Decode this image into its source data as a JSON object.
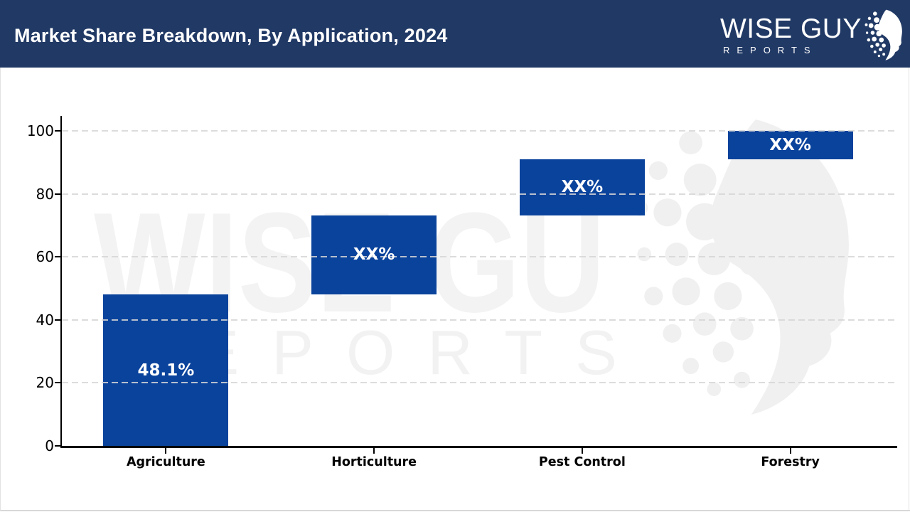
{
  "header": {
    "title": "Market Share Breakdown, By Application, 2024",
    "logo": {
      "line1": "WISE GUY",
      "line2": "REPORTS"
    }
  },
  "watermark": {
    "line1": "WISE GU",
    "line2": "REPORTS"
  },
  "colors": {
    "header_bg": "#213965",
    "bar": "#0a439c",
    "grid": "#d6d6d6",
    "axis": "#000000",
    "bar_label": "#ffffff",
    "watermark": "#f2f2f2",
    "logo_face": "#ffffff",
    "watermark_face": "#f0f0f0"
  },
  "chart_data": {
    "type": "bar",
    "subtype": "waterfall",
    "title": "Market Share Breakdown, By Application, 2024",
    "categories": [
      "Agriculture",
      "Horticulture",
      "Pest Control",
      "Forestry"
    ],
    "segments": [
      {
        "category": "Agriculture",
        "start": 0,
        "end": 48.1,
        "label": "48.1%"
      },
      {
        "category": "Horticulture",
        "start": 48.1,
        "end": 73.3,
        "label": "XX%"
      },
      {
        "category": "Pest Control",
        "start": 73.3,
        "end": 91.0,
        "label": "XX%"
      },
      {
        "category": "Forestry",
        "start": 91.0,
        "end": 100.0,
        "label": "XX%"
      }
    ],
    "yticks": [
      0,
      20,
      40,
      60,
      80,
      100
    ],
    "ytick_labels": [
      "0",
      "20",
      "40",
      "60",
      "80",
      "100"
    ],
    "ylim": [
      0,
      105
    ],
    "grid": "horizontal-dashed",
    "legend": "none"
  }
}
